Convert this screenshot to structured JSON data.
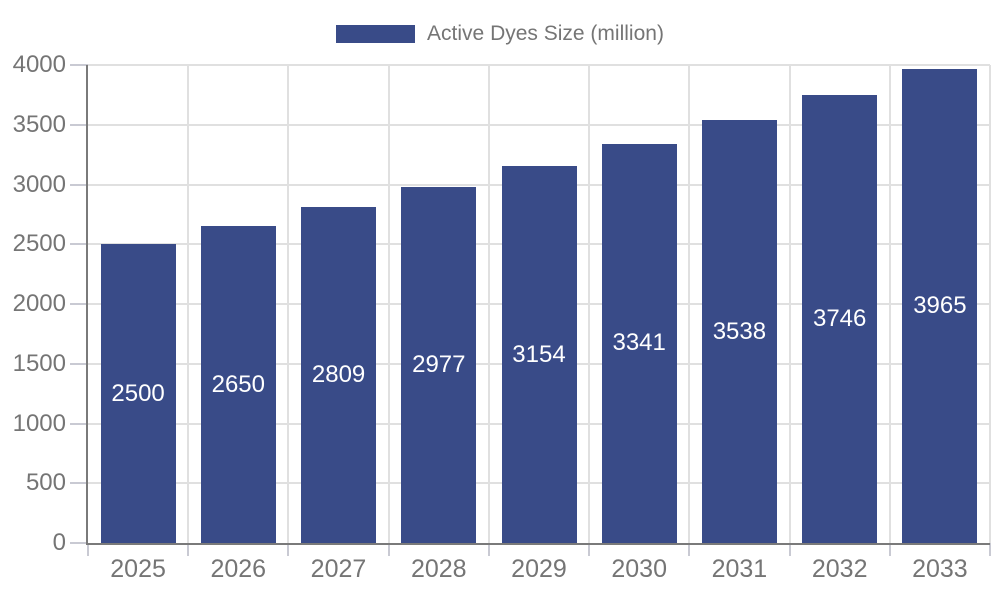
{
  "legend": {
    "label": "Active Dyes Size (million)"
  },
  "colors": {
    "bar": "#394B88",
    "grid": "#e0e0e0",
    "axis": "#7a7a7a",
    "tick": "#c9cad3",
    "label": "#757575",
    "value_label": "#ffffff",
    "background": "#ffffff"
  },
  "chart_data": {
    "type": "bar",
    "title": "",
    "legend_entries": [
      "Active Dyes Size (million)"
    ],
    "legend_position": "top-center",
    "categories": [
      "2025",
      "2026",
      "2027",
      "2028",
      "2029",
      "2030",
      "2031",
      "2032",
      "2033"
    ],
    "series": [
      {
        "name": "Active Dyes Size (million)",
        "values": [
          2500,
          2650,
          2809,
          2977,
          3154,
          3341,
          3538,
          3746,
          3965
        ]
      }
    ],
    "value_labels_shown": true,
    "value_labels_position": "inside-center",
    "xlabel": "",
    "ylabel": "",
    "ylim": [
      0,
      4000
    ],
    "ytick_step": 500,
    "yticks": [
      0,
      500,
      1000,
      1500,
      2000,
      2500,
      3000,
      3500,
      4000
    ],
    "grid": true
  }
}
